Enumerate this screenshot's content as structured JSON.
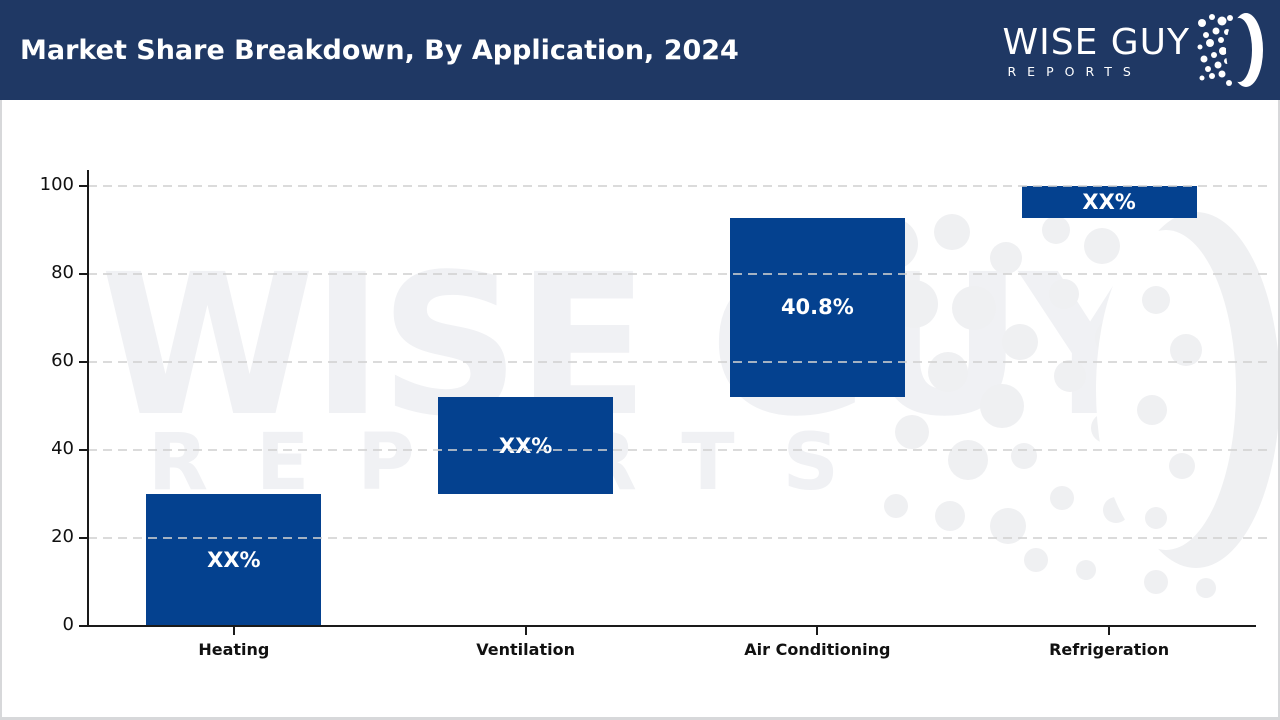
{
  "header": {
    "title": "Market Share Breakdown, By Application, 2024",
    "bg_color": "#1F3864",
    "logo": {
      "wordmark": "WISE GUY",
      "subtext": "REPORTS"
    }
  },
  "watermark": {
    "wordmark": "WISE GUY",
    "subtext": "REPORTS"
  },
  "chart_data": {
    "type": "bar",
    "subtype": "floating-segment-waterfall",
    "title": "Market Share Breakdown, By Application, 2024",
    "categories": [
      "Heating",
      "Ventilation",
      "Air Conditioning",
      "Refrigeration"
    ],
    "segments": [
      [
        0,
        30
      ],
      [
        30,
        52
      ],
      [
        52,
        92.8
      ],
      [
        92.8,
        100
      ]
    ],
    "values_pct": [
      30,
      22,
      40.8,
      7.2
    ],
    "bar_labels": [
      "XX%",
      "XX%",
      "40.8%",
      "XX%"
    ],
    "yticks": [
      0,
      20,
      40,
      60,
      80,
      100
    ],
    "ylim": [
      0,
      100
    ],
    "xlabel": "",
    "ylabel": "",
    "grid": "horizontal-dashed",
    "legend": "none",
    "bar_color": "#04418F",
    "label_color": "#FFFFFF",
    "axis_color": "#1a1a1a",
    "tick_label_color": "#111111"
  }
}
